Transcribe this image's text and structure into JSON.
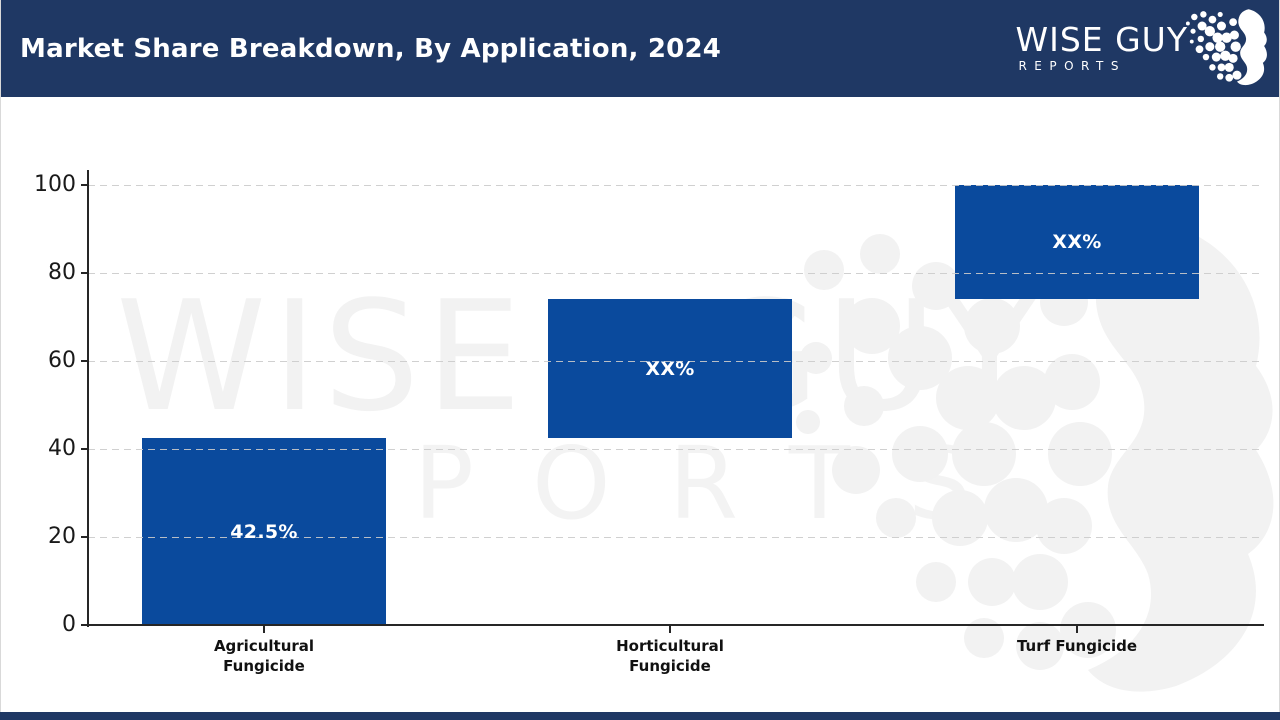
{
  "header": {
    "title": "Market Share Breakdown, By Application, 2024",
    "brand": {
      "name": "WISE GUY",
      "sub": "REPORTS"
    }
  },
  "watermark": {
    "line1": "WISE GUY",
    "line2": "REPORTS"
  },
  "colors": {
    "navy": "#1f3864",
    "bar_blue": "#0a4a9d",
    "watermark_gray": "#f2f2f2",
    "grid_gray": "#d9d9d9",
    "text_black": "#1a1a1a"
  },
  "chart_data": {
    "type": "bar",
    "subtype": "waterfall-cumulative",
    "title": "Market Share Breakdown, By Application, 2024",
    "categories": [
      "Agricultural Fungicide",
      "Horticultural Fungicide",
      "Turf Fungicide"
    ],
    "category_label_lines": [
      [
        "Agricultural",
        "Fungicide"
      ],
      [
        "Horticultural",
        "Fungicide"
      ],
      [
        "Turf Fungicide"
      ]
    ],
    "values": [
      42.5,
      31.5,
      26
    ],
    "bars": [
      {
        "category": "Agricultural Fungicide",
        "start": 0,
        "end": 42.5,
        "label": "42.5%"
      },
      {
        "category": "Horticultural Fungicide",
        "start": 42.5,
        "end": 74,
        "label": "XX%"
      },
      {
        "category": "Turf Fungicide",
        "start": 74,
        "end": 100,
        "label": "XX%"
      }
    ],
    "bar_color": "#0a4a9d",
    "xlabel": "",
    "ylabel": "",
    "ylim": [
      0,
      100
    ],
    "yticks": [
      0,
      20,
      40,
      60,
      80,
      100
    ],
    "grid": "horizontal-dashed",
    "legend": "none"
  }
}
